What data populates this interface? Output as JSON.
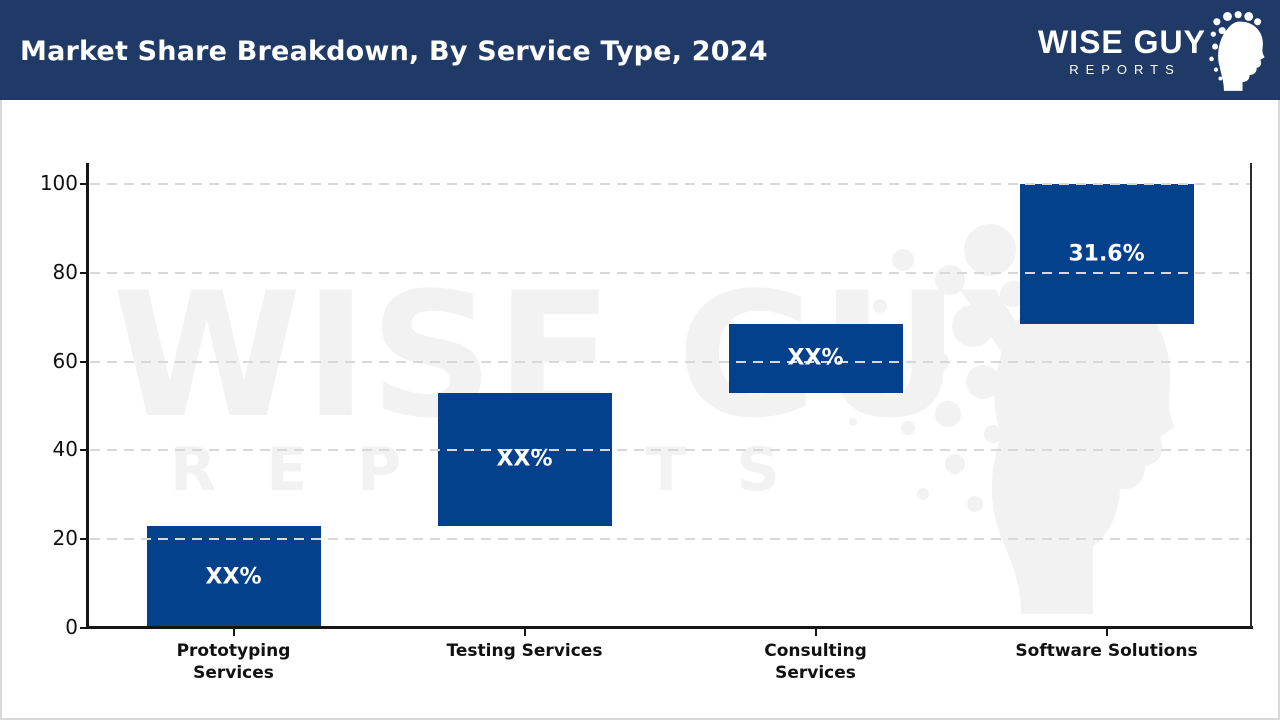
{
  "header": {
    "title": "Market Share Breakdown, By Service Type, 2024",
    "logo": {
      "line1": "WISE GUY",
      "line2": "REPORTS"
    }
  },
  "watermark": {
    "line1": "WISE GUY",
    "line2": "REPORTS"
  },
  "colors": {
    "header_bg": "#1f3a66",
    "bar_blue": "#04418c",
    "grid_gray": "#d8d8d8",
    "axis_black": "#151515",
    "watermark_gray": "#f2f2f2"
  },
  "chart_data": {
    "type": "bar",
    "subtype": "waterfall",
    "title": "Market Share Breakdown, By Service Type, 2024",
    "categories": [
      "Prototyping\nServices",
      "Testing Services",
      "Consulting\nServices",
      "Software Solutions"
    ],
    "segments": [
      {
        "category": "Prototyping\nServices",
        "start": 0,
        "end": 23,
        "value": 23,
        "label": "XX%"
      },
      {
        "category": "Testing Services",
        "start": 23,
        "end": 53,
        "value": 30,
        "label": "XX%"
      },
      {
        "category": "Consulting\nServices",
        "start": 53,
        "end": 68.4,
        "value": 15.4,
        "label": "XX%"
      },
      {
        "category": "Software Solutions",
        "start": 68.4,
        "end": 100,
        "value": 31.6,
        "label": "31.6%"
      }
    ],
    "ylabel": "",
    "xlabel": "",
    "yticks": [
      0,
      20,
      40,
      60,
      80,
      100
    ],
    "ylim": [
      0,
      105
    ],
    "grid": "dashed-horizontal-over-bars",
    "legend": "none",
    "bar_color": "#04418c"
  }
}
